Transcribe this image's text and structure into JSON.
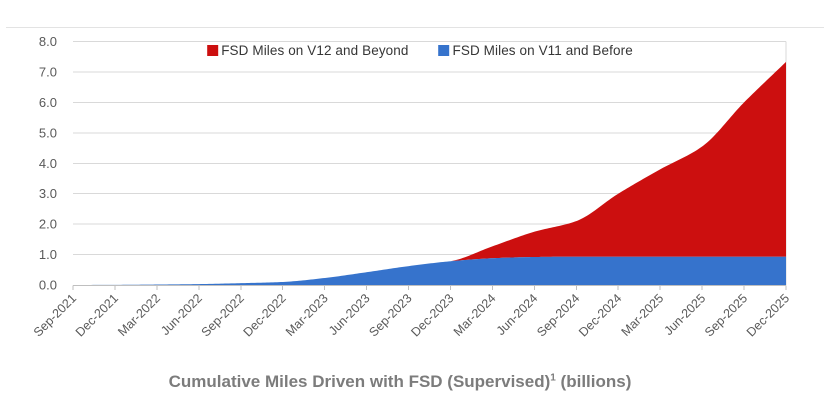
{
  "title": {
    "main": "Cumulative Miles Driven with FSD (Supervised)",
    "superscript": "1",
    "suffix": " (billions)"
  },
  "y_axis": {
    "tick_labels": [
      "8.0",
      "7.0",
      "6.0",
      "5.0",
      "4.0",
      "3.0",
      "2.0",
      "1.0",
      "0.0"
    ]
  },
  "colors": {
    "v12_red": "#cc0f0f",
    "v11_blue": "#3673cc",
    "gridline": "#d9d9d9",
    "axis_line": "#bfbfbf",
    "tick_label": "#595959",
    "legend_text": "#363636",
    "title_text": "#7c7c7c"
  },
  "chart_data": {
    "type": "area",
    "stacked": true,
    "title": "Cumulative Miles Driven with FSD (Supervised)¹ (billions)",
    "units": "billions of miles",
    "grid": "horizontal",
    "legend_position": "top-center",
    "ylim": [
      0,
      8
    ],
    "y_step": 1.0,
    "categories": [
      "Sep-2021",
      "Dec-2021",
      "Mar-2022",
      "Jun-2022",
      "Sep-2022",
      "Dec-2022",
      "Mar-2023",
      "Jun-2023",
      "Sep-2023",
      "Dec-2023",
      "Mar-2024",
      "Jun-2024",
      "Sep-2024",
      "Dec-2024",
      "Mar-2025",
      "Jun-2025",
      "Sep-2025",
      "Dec-2025"
    ],
    "series": [
      {
        "name": "FSD Miles on V12 and Beyond",
        "color": "#cc0f0f",
        "stack_order": "top",
        "values": [
          0,
          0,
          0,
          0,
          0,
          0,
          0,
          0,
          0,
          0,
          0.39,
          0.83,
          1.17,
          2.07,
          2.87,
          3.62,
          5.07,
          6.4
        ]
      },
      {
        "name": "FSD Miles on V11 and Before",
        "color": "#3673cc",
        "stack_order": "bottom",
        "values": [
          0,
          0.005,
          0.015,
          0.03,
          0.06,
          0.1,
          0.23,
          0.42,
          0.62,
          0.78,
          0.88,
          0.92,
          0.93,
          0.93,
          0.93,
          0.93,
          0.93,
          0.93
        ]
      }
    ],
    "stacked_totals": [
      0,
      0.005,
      0.015,
      0.03,
      0.06,
      0.1,
      0.23,
      0.42,
      0.62,
      0.78,
      1.27,
      1.75,
      2.1,
      3.0,
      3.8,
      4.55,
      6.0,
      7.33
    ]
  }
}
